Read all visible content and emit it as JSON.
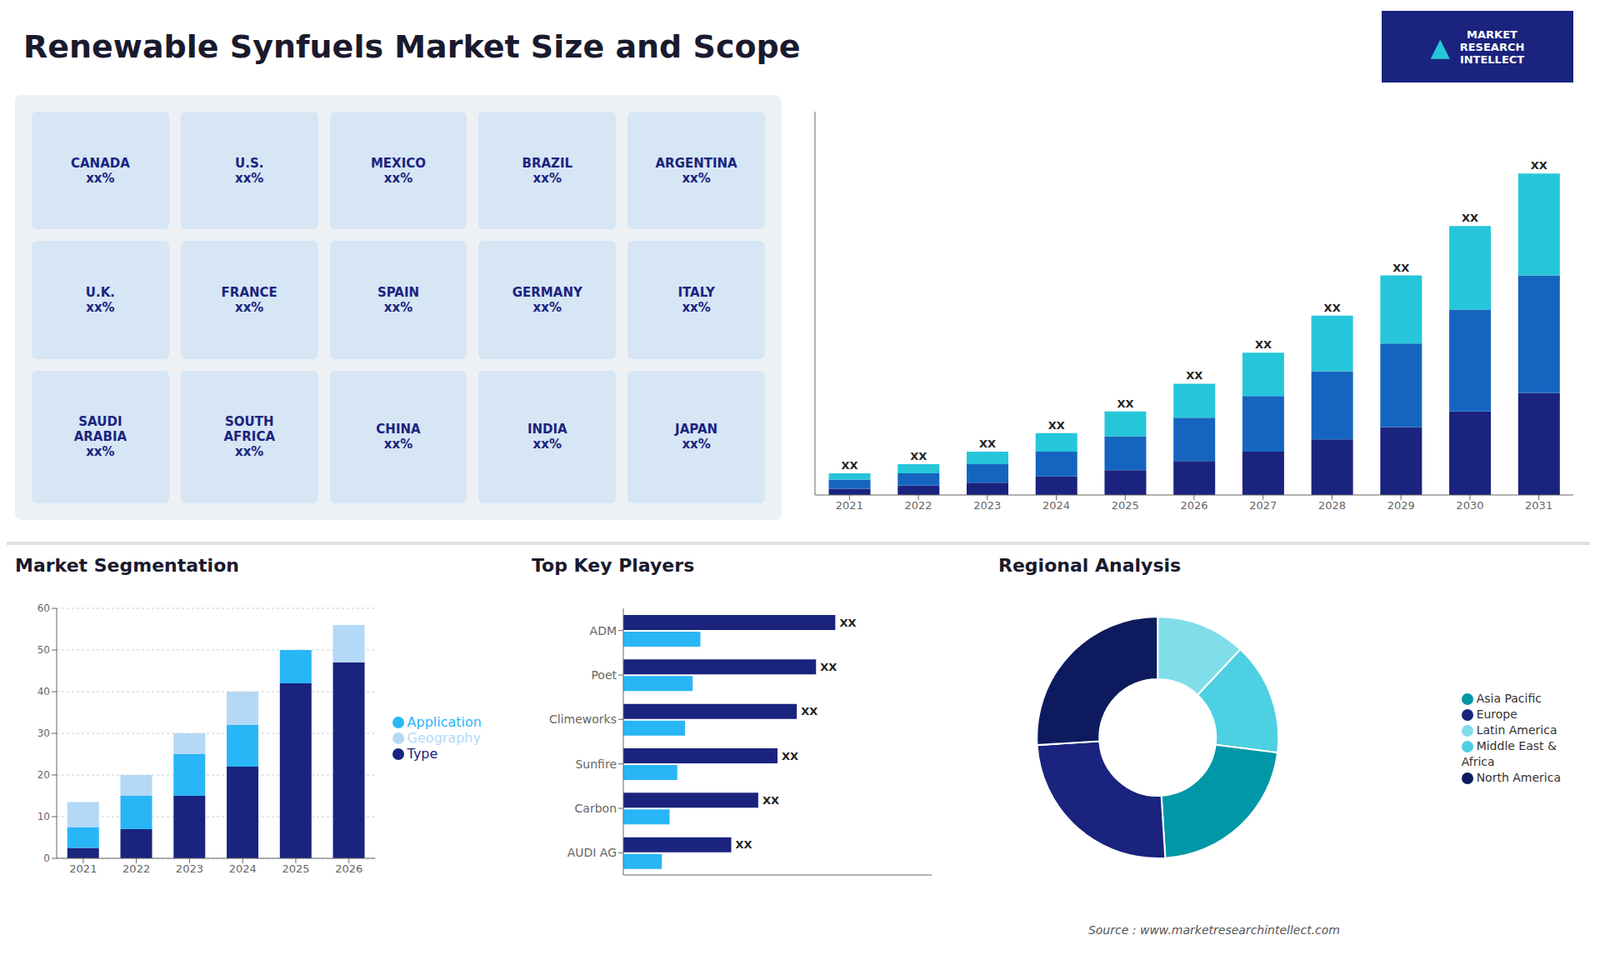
{
  "chart_data": [
    {
      "type": "map",
      "labels": [
        "CANADA\nxx%",
        "U.S.\nxx%",
        "MEXICO\nxx%",
        "BRAZIL\nxx%",
        "ARGENTINA\nxx%",
        "U.K.\nxx%",
        "FRANCE\nxx%",
        "SPAIN\nxx%",
        "GERMANY\nxx%",
        "ITALY\nxx%",
        "SAUDI\nARABIA\nxx%",
        "SOUTH\nAFRICA\nxx%",
        "CHINA\nxx%",
        "INDIA\nxx%",
        "JAPAN\nxx%"
      ],
      "annotations": [
        "MARKET\nRESEARCH\nINTELLECT",
        "▲",
        "Source : www.marketresearchintellect.com"
      ]
    },
    {
      "type": "bar",
      "stacked": true,
      "title": "Renewable Synfuels Market Size and Scope",
      "categories": [
        "2021",
        "2022",
        "2023",
        "2024",
        "2025",
        "2026",
        "2027",
        "2028",
        "2029",
        "2030",
        "2031"
      ],
      "series": [
        {
          "color": "#1a237e",
          "values": [
            2,
            3,
            4,
            6,
            8,
            11,
            14,
            18,
            22,
            27,
            33
          ]
        },
        {
          "color": "#1565c0",
          "values": [
            3,
            4,
            6,
            8,
            11,
            14,
            18,
            22,
            27,
            33,
            38
          ]
        },
        {
          "color": "#26c6da",
          "values": [
            2,
            3,
            4,
            6,
            8,
            11,
            14,
            18,
            22,
            27,
            33
          ]
        }
      ],
      "ylim": [
        0,
        124
      ],
      "tick_labels": "x",
      "grid": false,
      "annotations": [
        "XX",
        "XX",
        "XX",
        "XX",
        "XX",
        "XX",
        "XX",
        "XX",
        "XX",
        "XX",
        "XX"
      ]
    },
    {
      "type": "bar",
      "stacked": true,
      "title": "Market Segmentation",
      "categories": [
        "2021",
        "2022",
        "2023",
        "2024",
        "2025",
        "2026"
      ],
      "series": [
        {
          "name": "Type",
          "color": "#1a237e",
          "values": [
            2.5,
            7,
            15,
            22,
            42,
            47
          ]
        },
        {
          "name": "Application",
          "color": "#29b6f6",
          "values": [
            5,
            8,
            10,
            10,
            8,
            0
          ]
        },
        {
          "name": "Geography",
          "color": "#b3d9f7",
          "values": [
            6,
            5,
            5,
            8,
            0,
            9
          ]
        }
      ],
      "ylim": [
        0,
        60
      ],
      "yticks": [
        0,
        10,
        20,
        30,
        40,
        50,
        60
      ],
      "grid": true,
      "legend": "right"
    },
    {
      "type": "bar",
      "orientation": "horizontal",
      "title": "Top Key Players",
      "categories": [
        "ADM",
        "Poet",
        "Climeworks",
        "Sunfire",
        "Carbon",
        "AUDI AG"
      ],
      "series": [
        {
          "color": "#1a237e",
          "values": [
            55,
            50,
            45,
            40,
            35,
            28
          ]
        },
        {
          "color": "#29b6f6",
          "values": [
            20,
            18,
            16,
            14,
            12,
            10
          ]
        }
      ],
      "xlim": [
        0,
        80
      ],
      "tick_labels": "y",
      "grid": false,
      "annotations": [
        "XX",
        "XX",
        "XX",
        "XX",
        "XX",
        "XX"
      ]
    },
    {
      "type": "pie",
      "title": "Regional Analysis",
      "categories": [
        "Latin America",
        "Middle East &\nAfrica",
        "Asia Pacific",
        "Europe",
        "North America"
      ],
      "values": [
        12,
        15,
        22,
        25,
        26
      ],
      "colors": [
        "#80deea",
        "#4dd0e1",
        "#0097a7",
        "#1a237e",
        "#0d1b5e"
      ],
      "legend": "right"
    }
  ]
}
